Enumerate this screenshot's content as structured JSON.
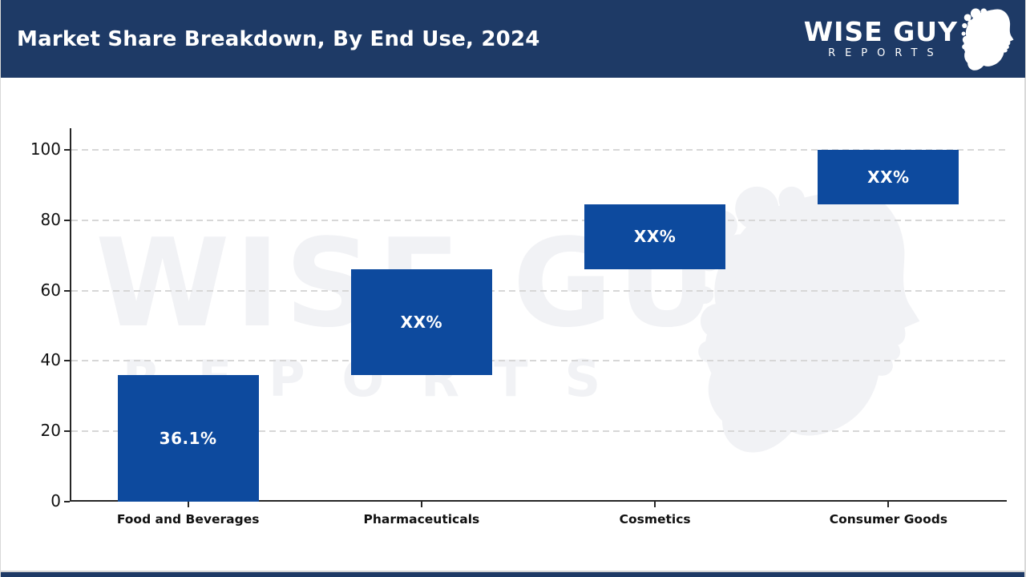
{
  "header": {
    "title": "Market Share Breakdown, By End Use, 2024",
    "bg_color": "#1e3a66",
    "logo": {
      "line1": "WISE GUY",
      "line2": "REPORTS"
    }
  },
  "watermark": {
    "line1": "WISE GUY",
    "line2": "REPORTS"
  },
  "colors": {
    "header_bg": "#1e3a66",
    "bar_blue": "#0d4a9e",
    "grid_gray": "#d7d7d7",
    "watermark_gray": "#f1f2f5",
    "axis_black": "#262626"
  },
  "chart_data": {
    "type": "bar",
    "variant": "waterfall",
    "title": "Market Share Breakdown, By End Use, 2024",
    "xlabel": "",
    "ylabel": "",
    "categories": [
      "Food and Beverages",
      "Pharmaceuticals",
      "Cosmetics",
      "Consumer Goods"
    ],
    "segments": [
      {
        "category": "Food and Beverages",
        "start": 0,
        "end": 36.1,
        "label": "36.1%"
      },
      {
        "category": "Pharmaceuticals",
        "start": 36.1,
        "end": 66.1,
        "label": "XX%"
      },
      {
        "category": "Cosmetics",
        "start": 66.1,
        "end": 84.5,
        "label": "XX%"
      },
      {
        "category": "Consumer Goods",
        "start": 84.5,
        "end": 100.2,
        "label": "XX%"
      }
    ],
    "yticks": [
      0,
      20,
      40,
      60,
      80,
      100
    ],
    "ylim": [
      0,
      106
    ],
    "grid": "horizontal-dashed",
    "legend": "none",
    "bar_color": "#0d4a9e",
    "bar_label_color": "#ffffff"
  }
}
